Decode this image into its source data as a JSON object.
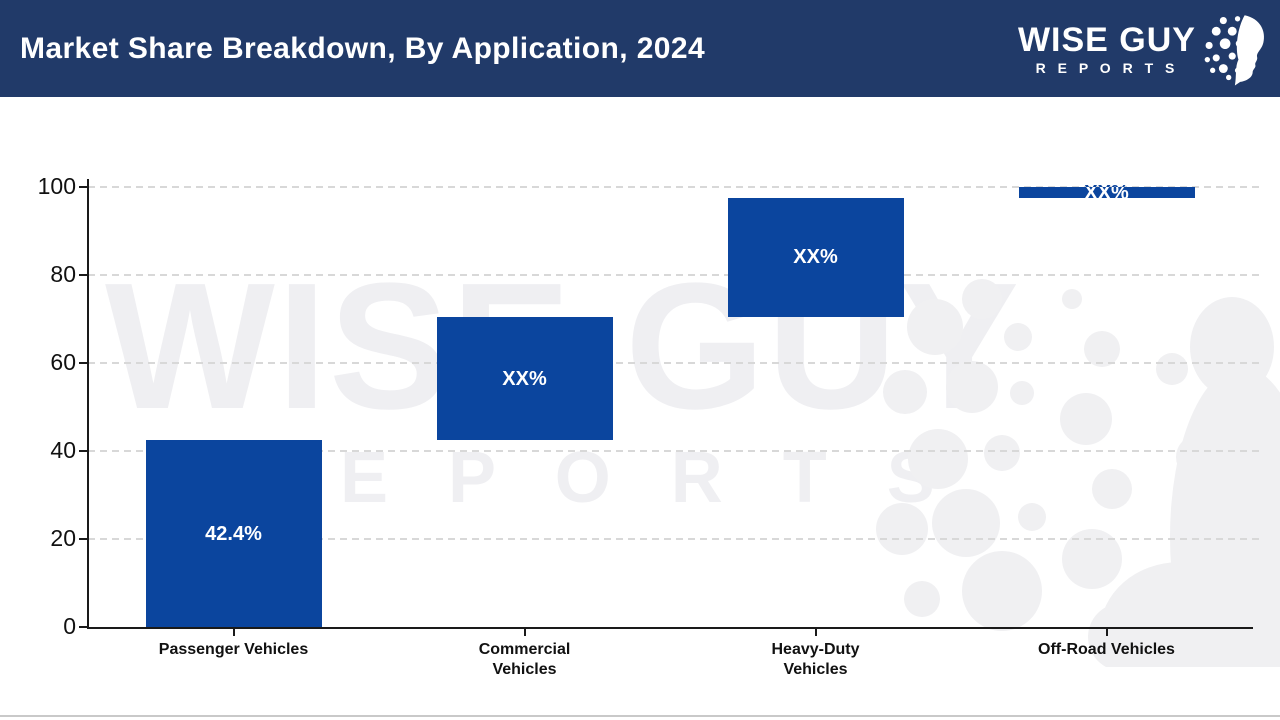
{
  "header": {
    "title": "Market Share Breakdown, By Application, 2024",
    "bg_color": "#213a69",
    "logo": {
      "wordmark": "WISE GUY",
      "subtitle": "R E P O R T S"
    }
  },
  "watermark": {
    "line1": "WISE GUY",
    "line2": "R E P O R T S"
  },
  "chart_data": {
    "type": "bar",
    "variant": "waterfall",
    "title": "Market Share Breakdown, By Application, 2024",
    "categories": [
      "Passenger Vehicles",
      "Commercial Vehicles",
      "Heavy-Duty Vehicles",
      "Off-Road Vehicles"
    ],
    "tick_labels": [
      "Passenger Vehicles",
      "Commercial\nVehicles",
      "Heavy-Duty\nVehicles",
      "Off-Road Vehicles"
    ],
    "segments": [
      {
        "category": "Passenger Vehicles",
        "start": 0,
        "end": 42.4,
        "label": "42.4%"
      },
      {
        "category": "Commercial Vehicles",
        "start": 42.4,
        "end": 70.5,
        "label": "XX%"
      },
      {
        "category": "Heavy-Duty Vehicles",
        "start": 70.5,
        "end": 97.5,
        "label": "XX%"
      },
      {
        "category": "Off-Road Vehicles",
        "start": 97.5,
        "end": 100,
        "label": "XX%"
      }
    ],
    "yticks": [
      0,
      20,
      40,
      60,
      80,
      100
    ],
    "ylim": [
      0,
      105
    ],
    "xlabel": "",
    "ylabel": "",
    "grid": true,
    "legend": false,
    "bar_color": "#0b459e",
    "bar_label_color": "#ffffff",
    "grid_color": "#d8d8d8",
    "axis_color": "#1a1a1a",
    "watermark_color": "#efeff2"
  }
}
